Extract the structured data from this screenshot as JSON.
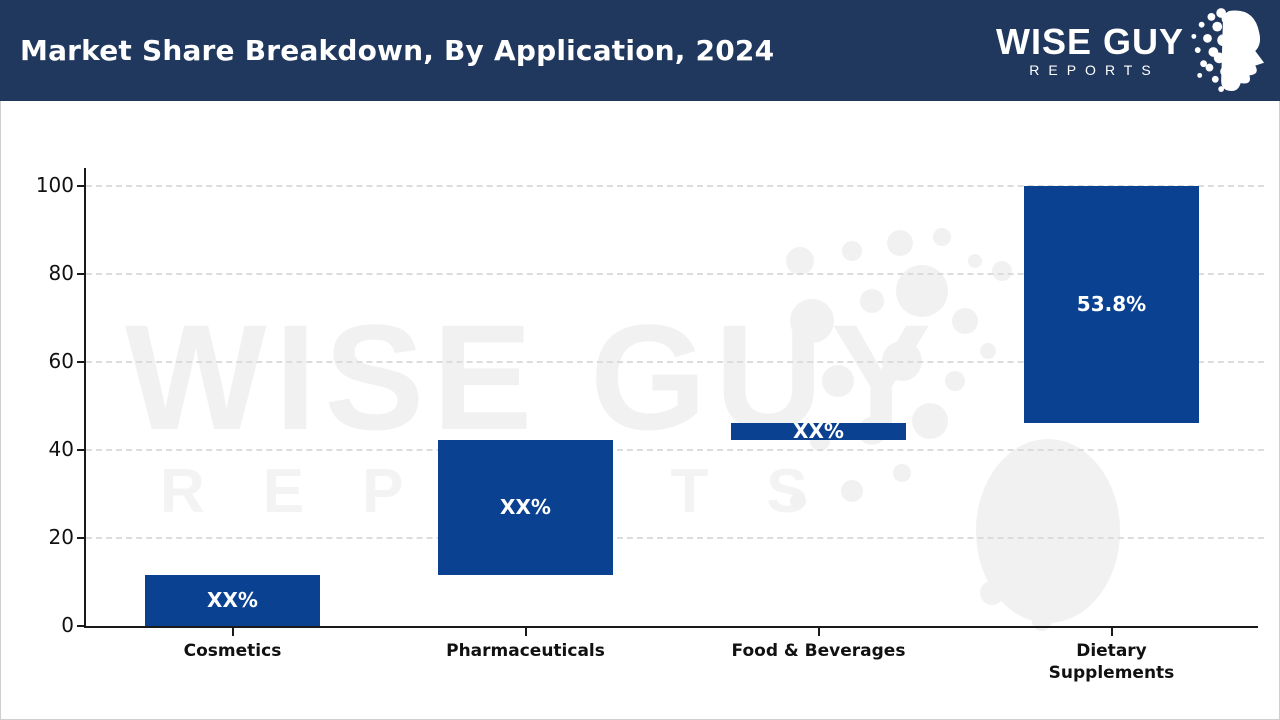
{
  "header": {
    "title": "Market Share Breakdown, By Application, 2024",
    "logo": {
      "line1": "WISE GUY",
      "line2": "REPORTS"
    }
  },
  "watermark": {
    "line1": "WISE GUY",
    "line2": "REPORTS"
  },
  "colors": {
    "header_bg": "#21385e",
    "bar": "#0a4191",
    "grid": "#dcdcdc",
    "axis": "#1a1a1a",
    "bar_label": "#ffffff",
    "watermark": "#f1f1f1"
  },
  "chart_data": {
    "type": "bar",
    "subtype": "waterfall",
    "title": "Market Share Breakdown, By Application, 2024",
    "xlabel": "",
    "ylabel": "",
    "categories": [
      "Cosmetics",
      "Pharmaceuticals",
      "Food & Beverages",
      "Dietary\nSupplements"
    ],
    "series": [
      {
        "name": "Market Share (%)",
        "segments": [
          {
            "category": "Cosmetics",
            "start": 0,
            "end": 11.6,
            "label": "XX%"
          },
          {
            "category": "Pharmaceuticals",
            "start": 11.6,
            "end": 42.3,
            "label": "XX%"
          },
          {
            "category": "Food & Beverages",
            "start": 42.3,
            "end": 46.2,
            "label": "XX%"
          },
          {
            "category": "Dietary Supplements",
            "start": 46.2,
            "end": 100,
            "label": "53.8%"
          }
        ]
      }
    ],
    "ylim": [
      0,
      100
    ],
    "yticks": [
      0,
      20,
      40,
      60,
      80,
      100
    ],
    "grid": "horizontal-dashed",
    "legend": "none"
  }
}
